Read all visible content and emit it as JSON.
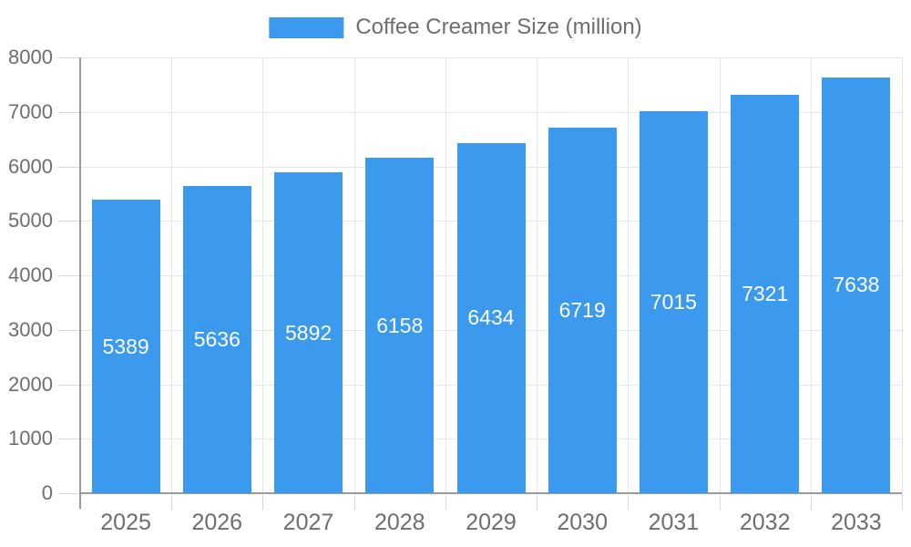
{
  "legend": {
    "label": "Coffee Creamer Size (million)",
    "swatch_color": "#3B99EE"
  },
  "chart_data": {
    "type": "bar",
    "title": "",
    "series_name": "Coffee Creamer Size (million)",
    "categories": [
      "2025",
      "2026",
      "2027",
      "2028",
      "2029",
      "2030",
      "2031",
      "2032",
      "2033"
    ],
    "values": [
      5389,
      5636,
      5892,
      6158,
      6434,
      6719,
      7015,
      7321,
      7638
    ],
    "value_labels_shown": [
      "5389",
      "5636",
      "5892",
      "6158",
      "6434",
      "6719",
      "7015",
      "7321",
      "7638"
    ],
    "xlabel": "",
    "ylabel": "",
    "ylim": [
      0,
      8000
    ],
    "yticks": [
      0,
      1000,
      2000,
      3000,
      4000,
      5000,
      6000,
      7000,
      8000
    ],
    "grid": true,
    "legend_position": "top",
    "value_label_position": "inside-center",
    "colors": {
      "bar": "#3B99EE",
      "value_label": "#FFFFFF",
      "axis_line": "#999999",
      "gridline": "#E6E6E6",
      "tick": "#D4D4D4",
      "text": "#6E6E6E"
    }
  }
}
